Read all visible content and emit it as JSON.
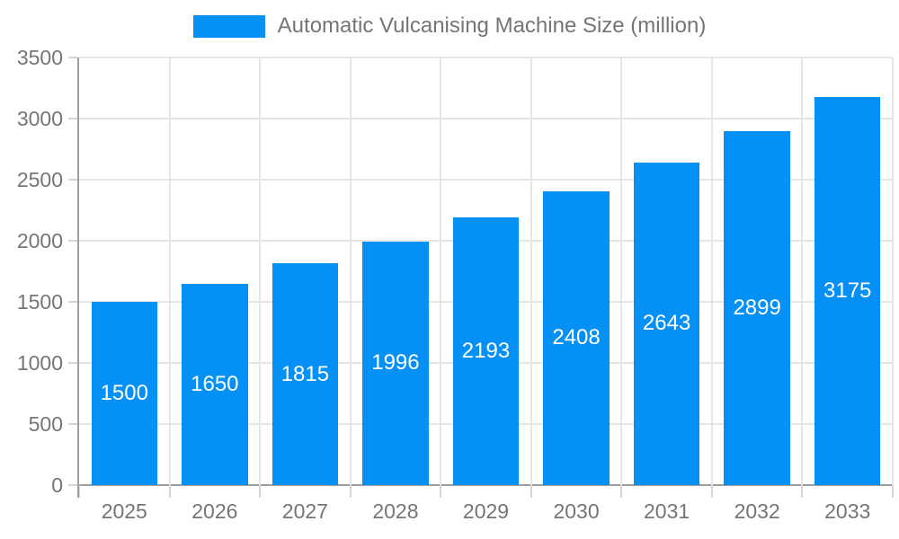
{
  "legend": {
    "label": "Automatic Vulcanising Machine Size (million)"
  },
  "chart_data": {
    "type": "bar",
    "title": "Automatic Vulcanising Machine Size (million)",
    "categories": [
      "2025",
      "2026",
      "2027",
      "2028",
      "2029",
      "2030",
      "2031",
      "2032",
      "2033"
    ],
    "values": [
      1500,
      1650,
      1815,
      1996,
      2193,
      2408,
      2643,
      2899,
      3175
    ],
    "xlabel": "",
    "ylabel": "",
    "ylim": [
      0,
      3500
    ],
    "ytick_step": 500,
    "grid": true,
    "legend_position": "top",
    "value_labels": "inside-center",
    "colors": {
      "bar": "#0590F5",
      "grid": "#E6E6E6",
      "axis": "#9E9E9E",
      "tick": "#D6D6D6",
      "tick_text": "#757575",
      "value_label": "#FFFFFF",
      "background": "#FFFFFF"
    }
  }
}
